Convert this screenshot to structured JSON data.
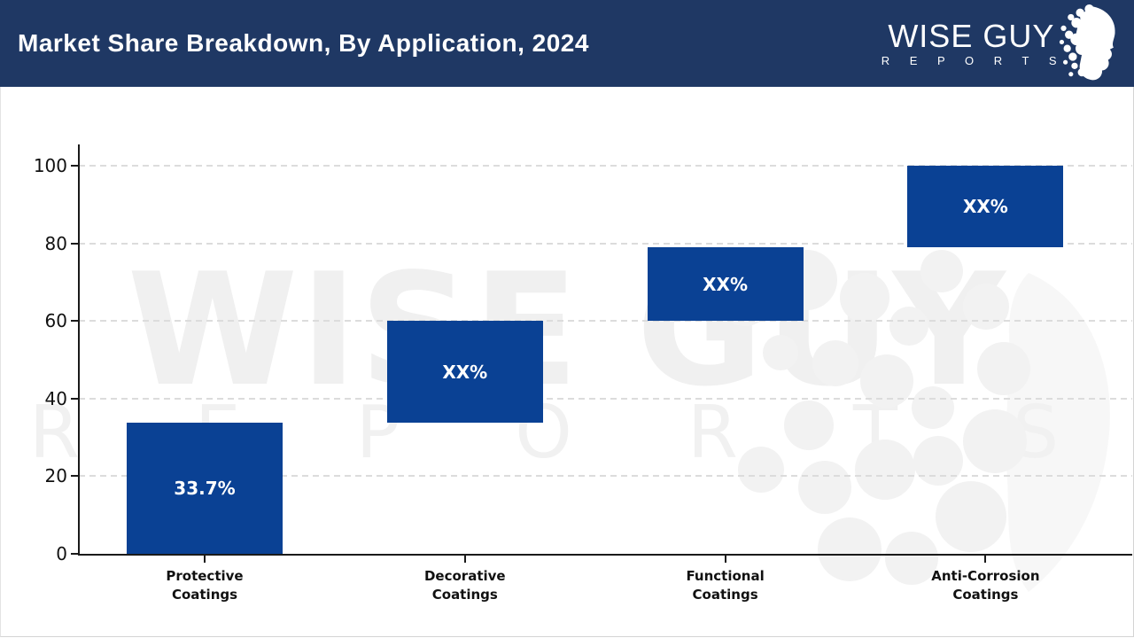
{
  "header": {
    "title": "Market Share Breakdown, By Application, 2024",
    "logo_line1": "WISE GUY",
    "logo_line2": "R E P O R T S",
    "bg_color": "#1f3864"
  },
  "watermark": {
    "line1": "WISE GUY",
    "line2": "R E P O R T S"
  },
  "chart_data": {
    "type": "bar",
    "subtype": "waterfall",
    "title": "Market Share Breakdown, By Application, 2024",
    "categories": [
      "Protective Coatings",
      "Decorative Coatings",
      "Functional Coatings",
      "Anti-Corrosion Coatings"
    ],
    "category_label_lines": [
      "Protective\nCoatings",
      "Decorative\nCoatings",
      "Functional\nCoatings",
      "Anti-Corrosion\nCoatings"
    ],
    "segments": [
      {
        "category": "Protective Coatings",
        "start": 0,
        "end": 33.7,
        "label": "33.7%"
      },
      {
        "category": "Decorative Coatings",
        "start": 33.7,
        "end": 60,
        "label": "XX%"
      },
      {
        "category": "Functional Coatings",
        "start": 60,
        "end": 79,
        "label": "XX%"
      },
      {
        "category": "Anti-Corrosion Coatings",
        "start": 79,
        "end": 100,
        "label": "XX%"
      }
    ],
    "xlabel": "",
    "ylabel": "",
    "ylim": [
      0,
      100
    ],
    "yticks": [
      0,
      20,
      40,
      60,
      80,
      100
    ],
    "grid": "horizontal dashed",
    "legend": "none",
    "bar_color": "#0a4194",
    "bar_label_color": "#ffffff",
    "axis_color": "#1a1a1a",
    "gridline_color": "#dcdcdc"
  }
}
